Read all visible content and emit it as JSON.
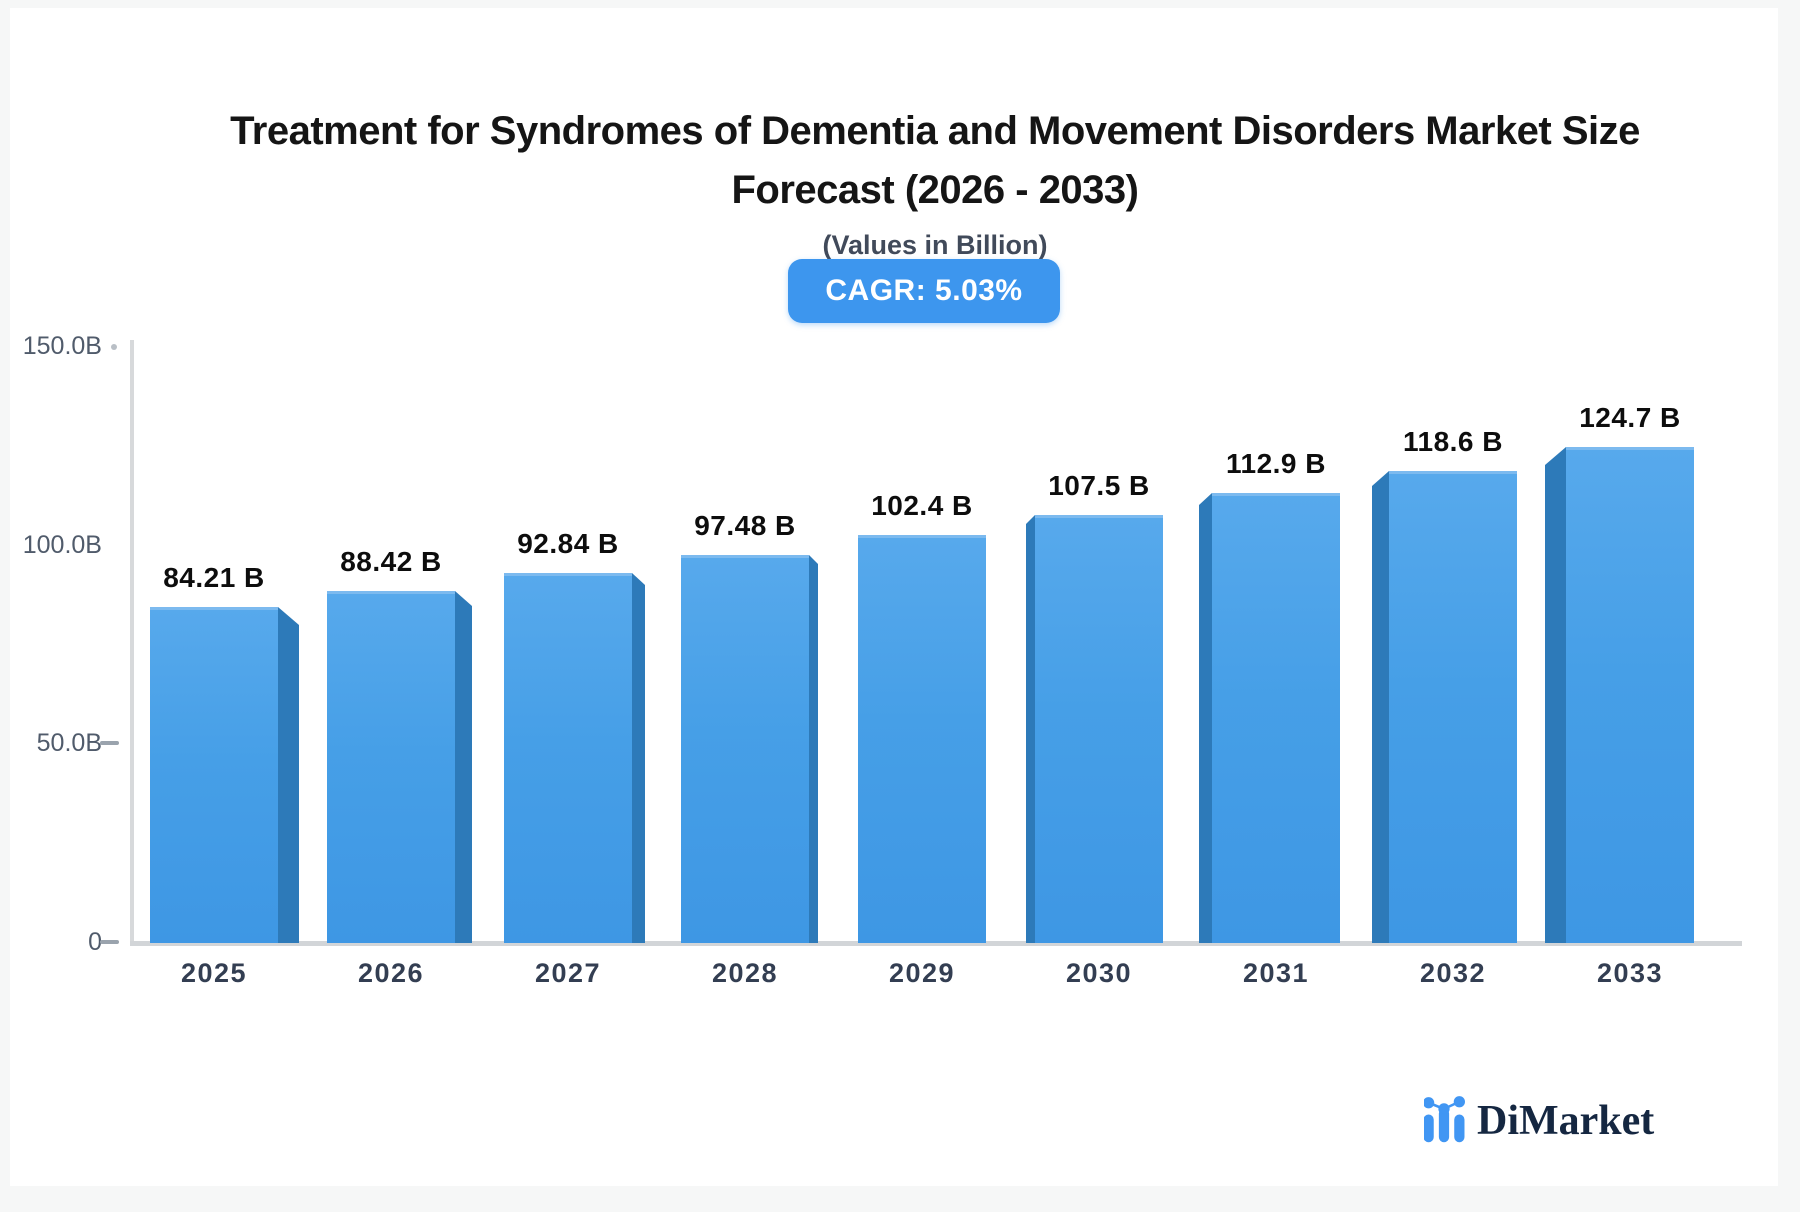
{
  "header": {
    "title_line1": "Treatment for Syndromes of Dementia and Movement Disorders Market Size",
    "title_line2": "Forecast (2026 - 2033)",
    "subtitle": "(Values in Billion)",
    "cagr_label": "CAGR: 5.03%"
  },
  "chart_data": {
    "type": "bar",
    "title": "Treatment for Syndromes of Dementia and Movement Disorders Market Size Forecast (2026 - 2033)",
    "subtitle": "(Values in Billion)",
    "cagr_percent": "5.03%",
    "categories": [
      "2025",
      "2026",
      "2027",
      "2028",
      "2029",
      "2030",
      "2031",
      "2032",
      "2033"
    ],
    "values": [
      84.21,
      88.42,
      92.84,
      97.48,
      102.4,
      107.5,
      112.9,
      118.6,
      124.7
    ],
    "value_labels": [
      "84.21 B",
      "88.42 B",
      "92.84 B",
      "97.48 B",
      "102.4 B",
      "107.5 B",
      "112.9 B",
      "118.6 B",
      "124.7 B"
    ],
    "xlabel": "",
    "ylabel": "",
    "ylim": [
      0,
      150
    ],
    "y_ticks": [
      {
        "label": "150.0B",
        "value": 150
      },
      {
        "label": "100.0B",
        "value": 100
      },
      {
        "label": "50.0B",
        "value": 50
      },
      {
        "label": "0",
        "value": 0
      }
    ],
    "grid": false,
    "legend": null,
    "style": "3d-bars",
    "bar_face_color": "#469fe7",
    "bar_side_color": "#2d7ab9",
    "badge_color": "#3d96ee"
  },
  "branding": {
    "logo_text": "DiMarket",
    "logo_text_color": "#152741",
    "logo_icon": "mini-bar-chart-with-dots",
    "logo_icon_color": "#4196f3"
  }
}
